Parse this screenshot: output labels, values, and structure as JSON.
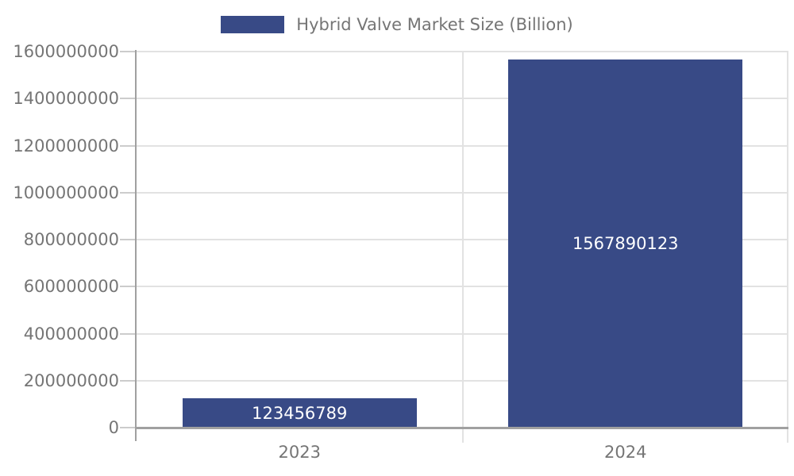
{
  "chart_data": {
    "type": "bar",
    "title": "Hybrid Valve Market Size (Billion)",
    "xlabel": "",
    "ylabel": "",
    "categories": [
      "2023",
      "2024"
    ],
    "values": [
      123456789,
      1567890123
    ],
    "bar_labels": [
      "123456789",
      "1567890123"
    ],
    "ylim": [
      0,
      1600000000
    ],
    "yticks": [
      0,
      200000000,
      400000000,
      600000000,
      800000000,
      1000000000,
      1200000000,
      1400000000,
      1600000000
    ],
    "ytick_labels": [
      "0",
      "200000000",
      "400000000",
      "600000000",
      "800000000",
      "1000000000",
      "1200000000",
      "1400000000",
      "1600000000"
    ],
    "grid": true,
    "legend": {
      "position": "top-center",
      "entries": [
        {
          "label": "Hybrid Valve Market Size (Billion)",
          "color": "#384A86"
        }
      ]
    },
    "colors": {
      "bar": "#384A86",
      "bar_label": "#ffffff",
      "axis_text": "#757575",
      "axis_line": "#a0a0a0",
      "gridline": "#e2e2e2",
      "tick": "#cccccc",
      "background": "#ffffff"
    }
  }
}
